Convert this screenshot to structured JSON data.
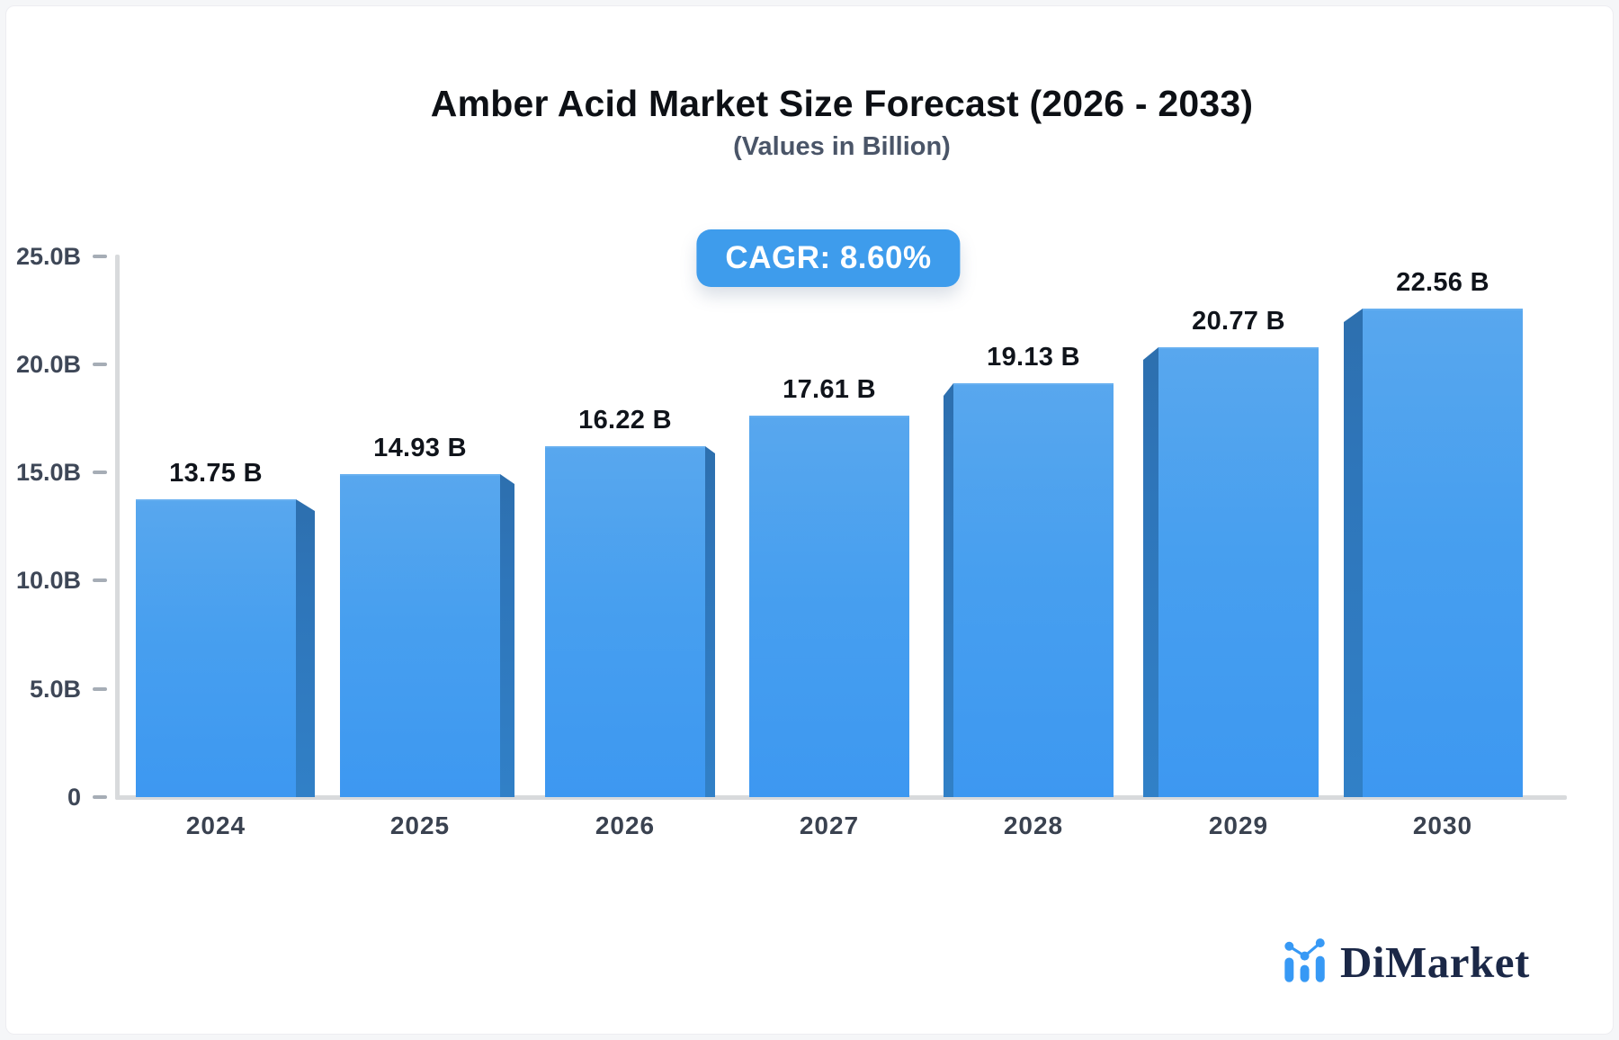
{
  "header": {
    "title": "Amber Acid Market Size Forecast (2026 - 2033)",
    "subtitle": "(Values in Billion)",
    "cagr_badge": "CAGR: 8.60%"
  },
  "chart_data": {
    "type": "bar",
    "title": "Amber Acid Market Size Forecast (2026 - 2033)",
    "subtitle": "(Values in Billion)",
    "annotation": "CAGR: 8.60%",
    "categories": [
      "2024",
      "2025",
      "2026",
      "2027",
      "2028",
      "2029",
      "2030"
    ],
    "values": [
      13.75,
      14.93,
      16.22,
      17.61,
      19.13,
      20.77,
      22.56
    ],
    "value_labels": [
      "13.75 B",
      "14.93 B",
      "16.22 B",
      "17.61 B",
      "19.13 B",
      "20.77 B",
      "22.56 B"
    ],
    "unit": "Billion",
    "xlabel": "",
    "ylabel": "",
    "ylim": [
      0,
      25
    ],
    "yticks": {
      "labels": [
        "25.0B",
        "20.0B",
        "15.0B",
        "10.0B",
        "5.0B",
        "0"
      ],
      "values": [
        25,
        20,
        15,
        10,
        5,
        0
      ]
    },
    "grid": false,
    "legend": false,
    "style": "pseudo-3d bars, center perspective"
  },
  "colors": {
    "badge_bg": "#3e9cec",
    "bar_front_top": "#58a7ee",
    "bar_front_bottom": "#3d98f1",
    "bar_side": "#2e75b9",
    "axis_line": "#d8dadc",
    "title_text": "#0d1015",
    "subtitle_text": "#4a5568",
    "logo_navy": "#1b2847",
    "logo_blue": "#3799f5"
  },
  "logo": {
    "text": "DiMarket",
    "icon": "bar-chart-logo-icon"
  }
}
